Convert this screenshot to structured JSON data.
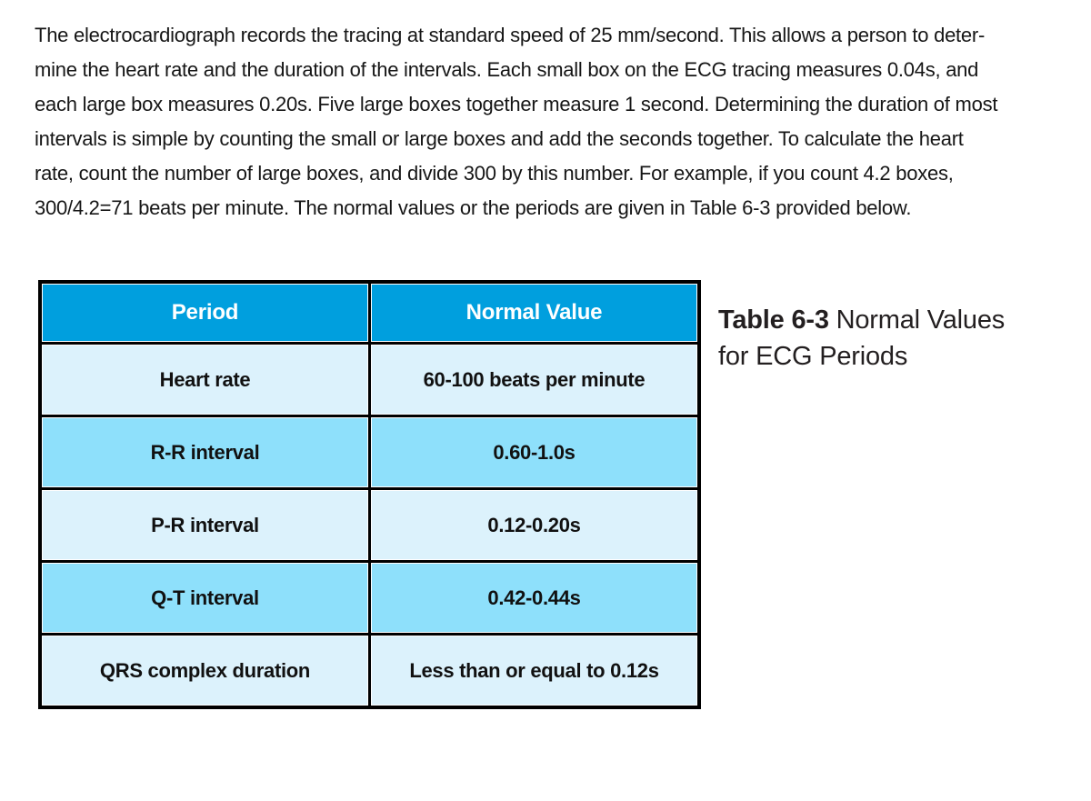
{
  "intro": {
    "lines": [
      "The electrocardiograph records the tracing at standard speed of 25 mm/second. This allows a person to deter-",
      "mine the heart rate and the duration of the intervals. Each small box on the ECG tracing measures 0.04s, and",
      "each large box measures 0.20s. Five large boxes together measure 1 second. Determining the duration of most",
      "intervals is simple by counting the small or large boxes and add the seconds together. To calculate the heart",
      "rate, count the number of large boxes, and divide 300 by this number. For example, if you count 4.2 boxes,",
      "300/4.2=71 beats per minute. The normal values or the periods are given in Table 6-3 provided below."
    ]
  },
  "table": {
    "headers": [
      "Period",
      "Normal Value"
    ],
    "rows": [
      {
        "period": "Heart rate",
        "value": "60-100 beats per minute"
      },
      {
        "period": "R-R interval",
        "value": "0.60-1.0s"
      },
      {
        "period": "P-R interval",
        "value": "0.12-0.20s"
      },
      {
        "period": "Q-T interval",
        "value": "0.42-0.44s"
      },
      {
        "period": "QRS complex duration",
        "value": "Less than or equal to 0.12s"
      }
    ]
  },
  "caption": {
    "label": "Table 6-3",
    "line1_rest": " Normal Values",
    "line2": "for ECG Periods"
  },
  "colors": {
    "header_bg": "#009FDE",
    "header_text": "#FFFFFF",
    "row_light": "#DCF2FC",
    "row_medium": "#8EE0FB",
    "grid_line": "#000000",
    "body_text": "#111111",
    "intro_text": "#161616",
    "caption_text": "#231F20"
  }
}
